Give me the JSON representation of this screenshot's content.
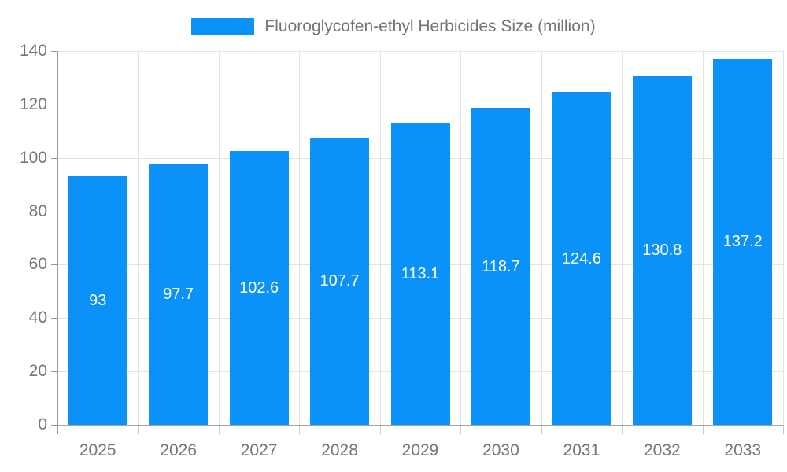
{
  "chart_data": {
    "type": "bar",
    "title": "Fluoroglycofen-ethyl Herbicides Size (million)",
    "series_name": "Fluoroglycofen-ethyl Herbicides Size (million)",
    "categories": [
      "2025",
      "2026",
      "2027",
      "2028",
      "2029",
      "2030",
      "2031",
      "2032",
      "2033"
    ],
    "values": [
      93,
      97.7,
      102.6,
      107.7,
      113.1,
      118.7,
      124.6,
      130.8,
      137.2
    ],
    "value_labels": [
      "93",
      "97.7",
      "102.6",
      "107.7",
      "113.1",
      "118.7",
      "124.6",
      "130.8",
      "137.2"
    ],
    "xlabel": "",
    "ylabel": "",
    "ylim": [
      0,
      140
    ],
    "yticks": [
      0,
      20,
      40,
      60,
      80,
      100,
      120,
      140
    ],
    "grid": true,
    "legend_position": "top-center",
    "value_labels_position": "centered-inside-bars",
    "colors": {
      "bar": "#0a92f8",
      "value_label_text": "#ffffff",
      "axis_text": "#757575",
      "gridline": "#e3e3e3",
      "axis_line": "#999999",
      "background": "#ffffff"
    }
  }
}
